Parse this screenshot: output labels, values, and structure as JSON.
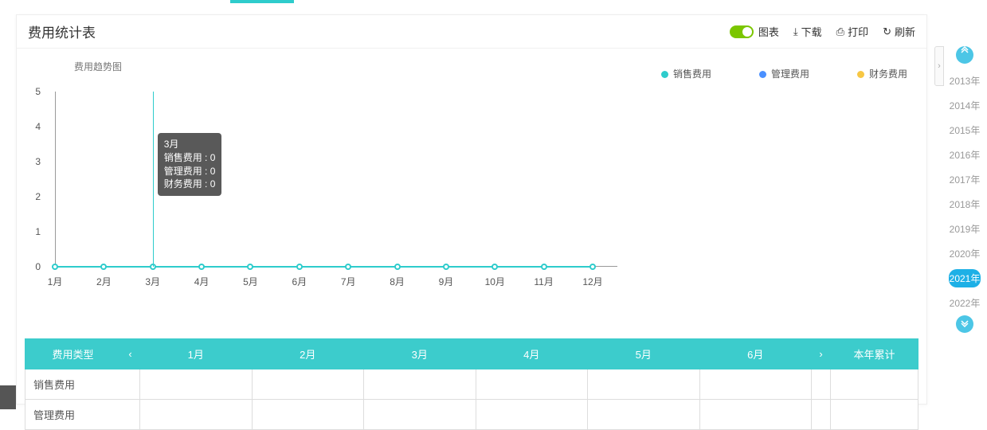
{
  "header": {
    "title": "费用统计表",
    "toggle_label": "图表",
    "download_label": "下载",
    "print_label": "打印",
    "refresh_label": "刷新"
  },
  "chart": {
    "title": "费用趋势图",
    "type": "line",
    "xlim": [
      1,
      12
    ],
    "ylim": [
      0,
      5
    ],
    "ytick_step": 1,
    "yticks": [
      0,
      1,
      2,
      3,
      4,
      5
    ],
    "xlabels": [
      "1月",
      "2月",
      "3月",
      "4月",
      "5月",
      "6月",
      "7月",
      "8月",
      "9月",
      "10月",
      "11月",
      "12月"
    ],
    "series": [
      {
        "name": "销售费用",
        "color": "#2ecccc",
        "values": [
          0,
          0,
          0,
          0,
          0,
          0,
          0,
          0,
          0,
          0,
          0,
          0
        ]
      },
      {
        "name": "管理费用",
        "color": "#4a90ff",
        "values": [
          0,
          0,
          0,
          0,
          0,
          0,
          0,
          0,
          0,
          0,
          0,
          0
        ]
      },
      {
        "name": "财务费用",
        "color": "#f7c744",
        "values": [
          0,
          0,
          0,
          0,
          0,
          0,
          0,
          0,
          0,
          0,
          0,
          0
        ]
      }
    ],
    "highlight_index": 2,
    "highlight_color": "#2ecccc",
    "tooltip": {
      "title": "3月",
      "lines": [
        "销售费用 : 0",
        "管理费用 : 0",
        "财务费用 : 0"
      ]
    },
    "grid_color": "#e0e0e0",
    "axis_color": "#999999",
    "background": "#ffffff",
    "label_fontsize": 12,
    "marker_radius": 4
  },
  "table": {
    "type_header": "费用类型",
    "month_headers": [
      "1月",
      "2月",
      "3月",
      "4月",
      "5月",
      "6月"
    ],
    "total_header": "本年累计",
    "rows": [
      {
        "label": "销售费用",
        "cells": [
          "",
          "",
          "",
          "",
          "",
          ""
        ],
        "total": ""
      },
      {
        "label": "管理费用",
        "cells": [
          "",
          "",
          "",
          "",
          "",
          ""
        ],
        "total": ""
      }
    ],
    "header_bg": "#3ccccc",
    "header_fg": "#ffffff",
    "border_color": "#dddddd"
  },
  "years": {
    "items": [
      "2013年",
      "2014年",
      "2015年",
      "2016年",
      "2017年",
      "2018年",
      "2019年",
      "2020年",
      "2021年",
      "2022年"
    ],
    "active": "2021年",
    "scroll_up_icon": "«",
    "scroll_down_icon": "»",
    "active_bg": "#1db0e6"
  },
  "icons": {
    "download": "⤓",
    "print": "⎙",
    "refresh": "↻",
    "collapse": "›"
  }
}
